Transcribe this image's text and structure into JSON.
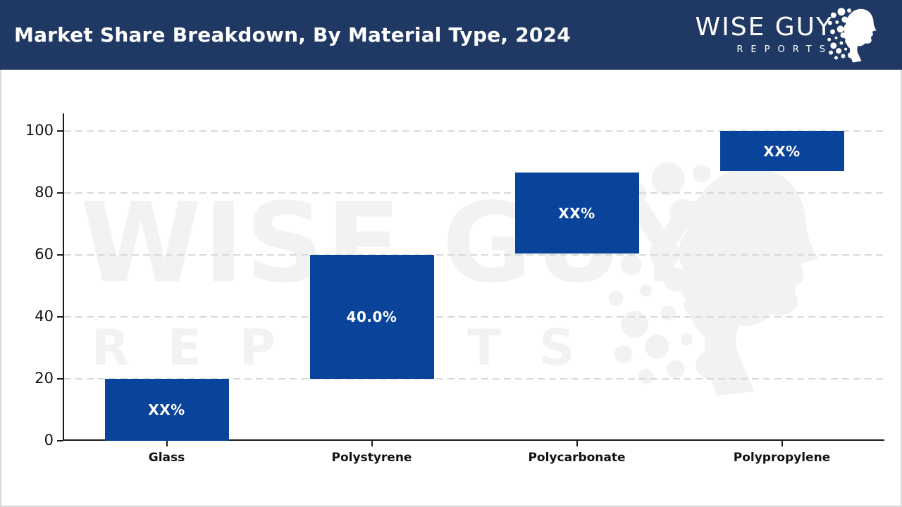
{
  "header": {
    "title": "Market Share Breakdown, By Material Type, 2024",
    "logo": {
      "line1": "WISE GUY",
      "line2": "REPORTS"
    }
  },
  "watermark": {
    "line1": "WISE GUY",
    "line2": "REPORTS"
  },
  "colors": {
    "header_bg": "#1f3864",
    "bar": "#09439a",
    "grid": "#d9d9d9",
    "axis": "#1a1a1a",
    "value_label": "#ffffff",
    "watermark": "#f1f2f4"
  },
  "chart_data": {
    "type": "bar",
    "subtype": "floating-waterfall",
    "title": "Market Share Breakdown, By Material Type, 2024",
    "categories": [
      "Glass",
      "Polystyrene",
      "Polycarbonate",
      "Polypropylene"
    ],
    "segments": [
      {
        "category": "Glass",
        "start": 0,
        "end": 20,
        "label": "XX%"
      },
      {
        "category": "Polystyrene",
        "start": 20,
        "end": 60,
        "label": "40.0%"
      },
      {
        "category": "Polycarbonate",
        "start": 60.5,
        "end": 86.5,
        "label": "XX%"
      },
      {
        "category": "Polypropylene",
        "start": 87,
        "end": 100,
        "label": "XX%"
      }
    ],
    "yticks": [
      0,
      20,
      40,
      60,
      80,
      100
    ],
    "ylim": [
      0,
      105
    ],
    "xlabel": "",
    "ylabel": "",
    "grid": "horizontal-dashed",
    "legend": "none",
    "bar_color": "#09439a",
    "value_label_color": "#ffffff"
  }
}
